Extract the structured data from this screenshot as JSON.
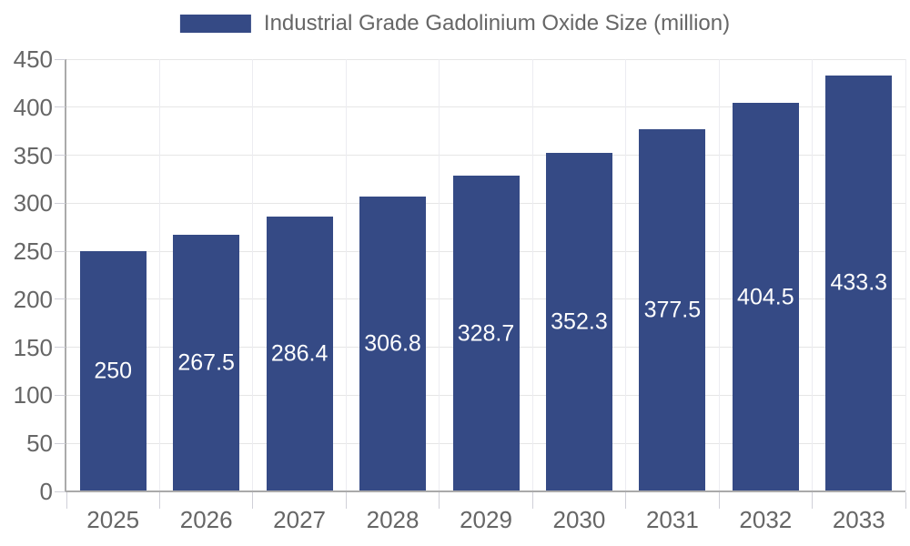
{
  "legend": {
    "label": "Industrial Grade Gadolinium Oxide Size (million)"
  },
  "chart_data": {
    "type": "bar",
    "title": "Industrial Grade Gadolinium Oxide Size (million)",
    "categories": [
      "2025",
      "2026",
      "2027",
      "2028",
      "2029",
      "2030",
      "2031",
      "2032",
      "2033"
    ],
    "values": [
      250,
      267.5,
      286.4,
      306.8,
      328.7,
      352.3,
      377.5,
      404.5,
      433.3
    ],
    "value_labels": [
      "250",
      "267.5",
      "286.4",
      "306.8",
      "328.7",
      "352.3",
      "377.5",
      "404.5",
      "433.3"
    ],
    "xlabel": "",
    "ylabel": "",
    "ylim": [
      0,
      450
    ],
    "yticks": [
      0,
      50,
      100,
      150,
      200,
      250,
      300,
      350,
      400,
      450
    ],
    "grid": true,
    "legend_position": "top-center",
    "bar_color": "#354a85",
    "value_label_color": "#ffffff"
  },
  "colors": {
    "background": "#ffffff",
    "bar": "#354a85",
    "grid_h": "#e6e6e6",
    "grid_v": "#ececf1",
    "axis": "#aaaaaa",
    "tick": "#d0d0d8",
    "text": "#666666"
  }
}
